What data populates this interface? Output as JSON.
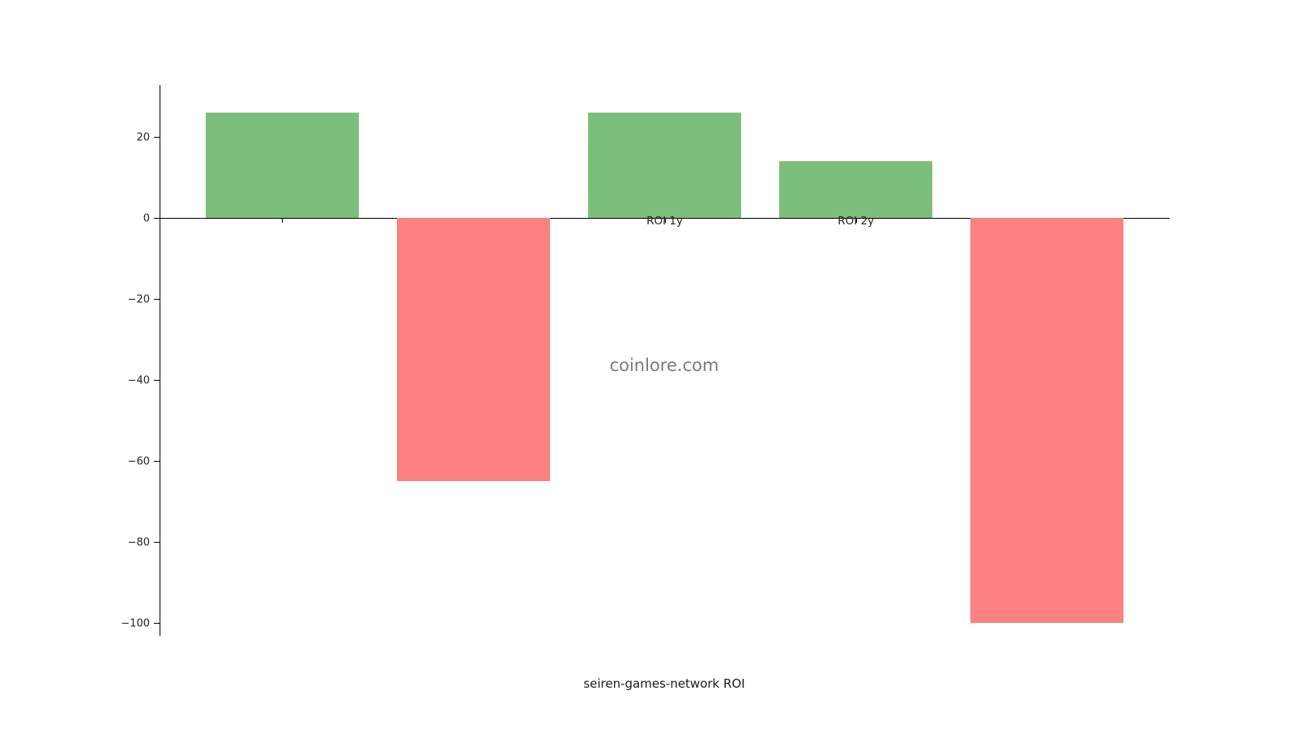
{
  "chart_data": {
    "type": "bar",
    "title": "seiren-games-network ROI",
    "watermark": "coinlore.com",
    "categories": [
      "",
      "",
      "ROI 1y",
      "ROI 2y",
      ""
    ],
    "values": [
      26,
      -65,
      26,
      14,
      -100
    ],
    "series": [
      {
        "name": "ROI",
        "values": [
          26,
          -65,
          26,
          14,
          -100
        ]
      }
    ],
    "bar_colors": {
      "positive": "#7cbf7c",
      "negative": "#fc8181"
    },
    "y_ticks": [
      20,
      0,
      -20,
      -40,
      -60,
      -80,
      -100
    ],
    "y_tick_labels": [
      "20",
      "0",
      "−20",
      "−40",
      "−60",
      "−80",
      "−100"
    ],
    "x_ticks": [
      {
        "position": 0,
        "label": ""
      },
      {
        "position": 2,
        "label": "ROI 1y"
      },
      {
        "position": 3,
        "label": "ROI 2y"
      }
    ],
    "ylim": [
      -103.2,
      32.8
    ],
    "xlim": [
      -0.64,
      4.64
    ],
    "bar_width": 0.8,
    "grid": false,
    "legend_position": "none",
    "axis_color": "#000000",
    "text_color": "#262626",
    "watermark_color": "#7b7b7b"
  }
}
